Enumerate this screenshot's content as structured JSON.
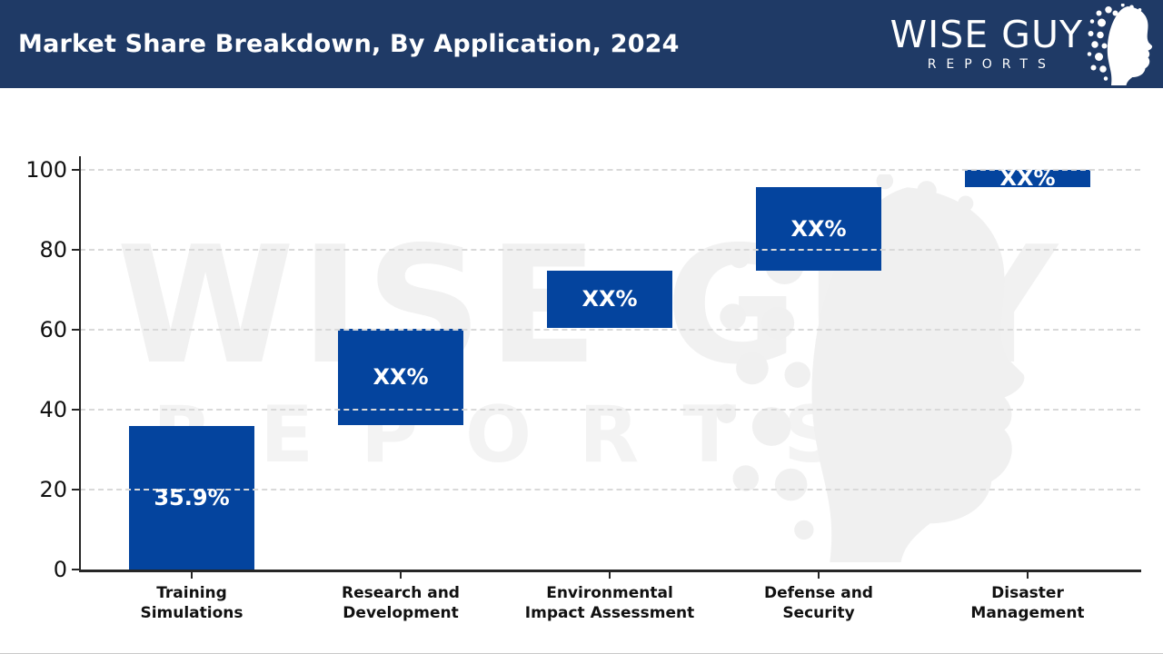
{
  "header": {
    "title": "Market Share Breakdown, By Application, 2024",
    "logo": {
      "line1": "WISE GUY",
      "line2": "REPORTS"
    }
  },
  "watermark": {
    "line1": "WISE GUY",
    "line2": "REPORTS"
  },
  "chart_data": {
    "type": "bar",
    "subtype": "waterfall",
    "title": "Market Share Breakdown, By Application, 2024",
    "categories": [
      "Training\nSimulations",
      "Research and\nDevelopment",
      "Environmental\nImpact Assessment",
      "Defense and\nSecurity",
      "Disaster\nManagement"
    ],
    "segments": [
      {
        "category": "Training Simulations",
        "start": 0,
        "end": 35.9,
        "value_label": "35.9%"
      },
      {
        "category": "Research and Development",
        "start": 36.1,
        "end": 60.2,
        "value_label": "XX%"
      },
      {
        "category": "Environmental Impact Assessment",
        "start": 60.5,
        "end": 74.8,
        "value_label": "XX%"
      },
      {
        "category": "Defense and Security",
        "start": 74.8,
        "end": 95.7,
        "value_label": "XX%"
      },
      {
        "category": "Disaster Management",
        "start": 95.7,
        "end": 100,
        "value_label": "XX%"
      }
    ],
    "yticks": [
      0,
      20,
      40,
      60,
      80,
      100
    ],
    "ylim": [
      0,
      100
    ],
    "grid": "horizontal-dashed",
    "legend": "none",
    "bar_color": "#04449E",
    "bar_label_color": "#ffffff"
  },
  "colors": {
    "header_bg": "#1F3A66",
    "bar": "#04449E",
    "grid": "#D9D9D9",
    "axis": "#262626",
    "watermark": "#F1F1F1"
  }
}
